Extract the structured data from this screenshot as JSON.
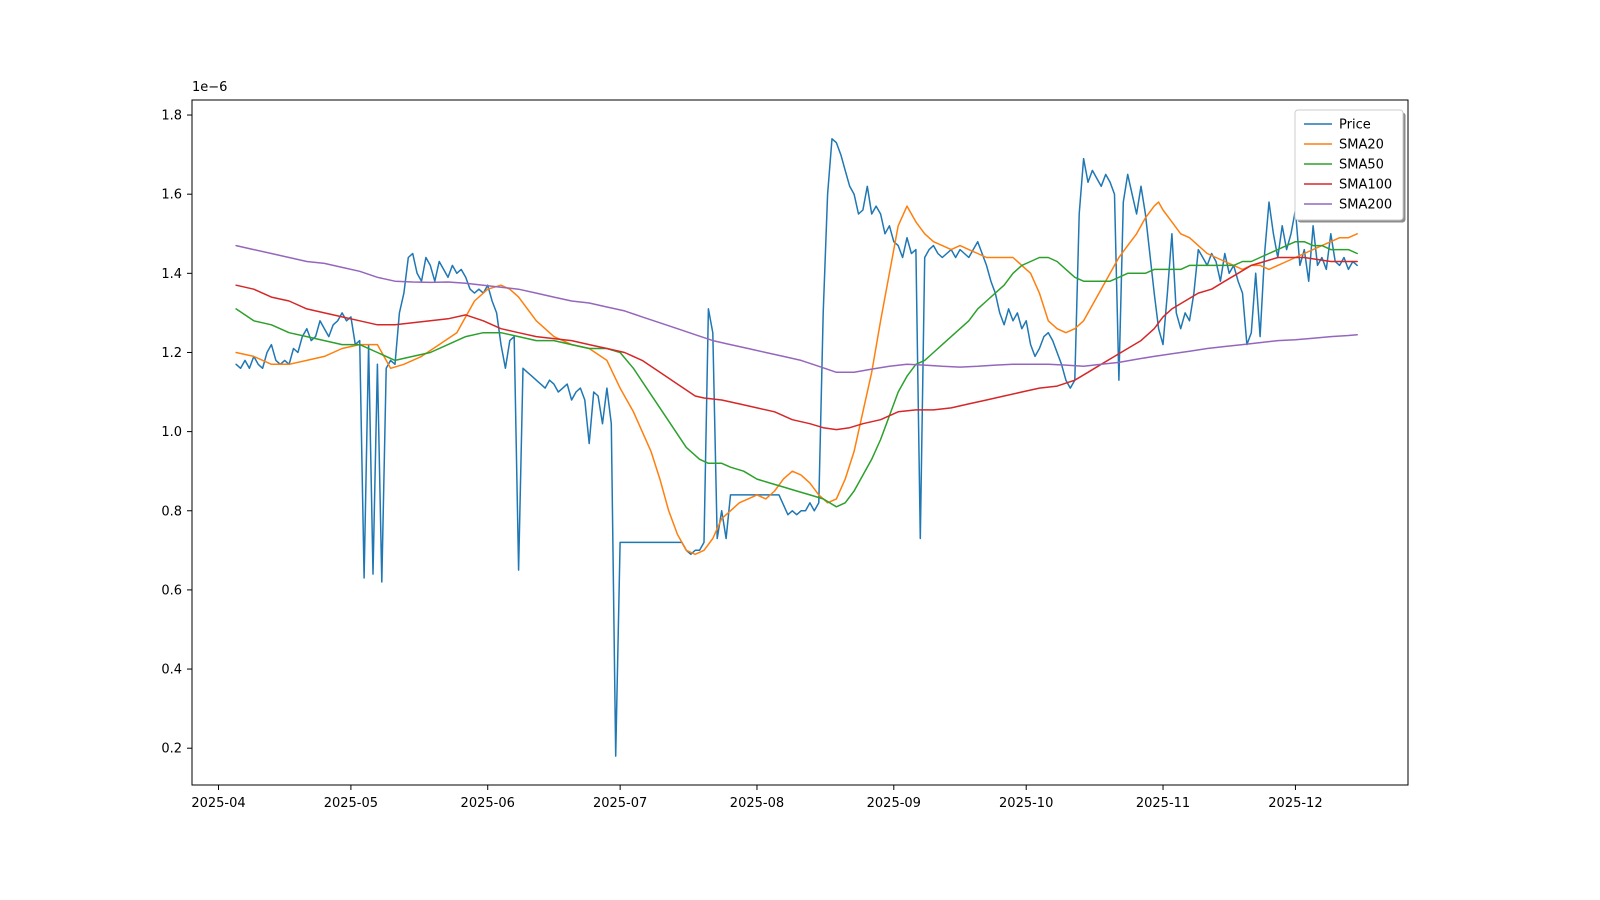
{
  "figure": {
    "background": "#ffffff"
  },
  "chart_data": {
    "type": "line",
    "title": "",
    "xlabel": "",
    "ylabel": "",
    "y_offset_label": "1e−6",
    "grid": false,
    "legend_position": "upper right",
    "xlim": [
      -6,
      269.5
    ],
    "ylim": [
      0.107,
      1.838
    ],
    "x_ticks": [
      {
        "label": "2025-04",
        "value": 0
      },
      {
        "label": "2025-05",
        "value": 30
      },
      {
        "label": "2025-06",
        "value": 61
      },
      {
        "label": "2025-07",
        "value": 91
      },
      {
        "label": "2025-08",
        "value": 122
      },
      {
        "label": "2025-09",
        "value": 153
      },
      {
        "label": "2025-10",
        "value": 183
      },
      {
        "label": "2025-11",
        "value": 214
      },
      {
        "label": "2025-12",
        "value": 244
      }
    ],
    "y_ticks": [
      {
        "label": "0.2",
        "value": 0.2
      },
      {
        "label": "0.4",
        "value": 0.4
      },
      {
        "label": "0.6",
        "value": 0.6
      },
      {
        "label": "0.8",
        "value": 0.8
      },
      {
        "label": "1.0",
        "value": 1.0
      },
      {
        "label": "1.2",
        "value": 1.2
      },
      {
        "label": "1.4",
        "value": 1.4
      },
      {
        "label": "1.6",
        "value": 1.6
      },
      {
        "label": "1.8",
        "value": 1.8
      }
    ],
    "series": [
      {
        "name": "Price",
        "color": "#1f77b4",
        "x": [
          4,
          5,
          6,
          7,
          8,
          9,
          10,
          11,
          12,
          13,
          14,
          15,
          16,
          17,
          18,
          19,
          20,
          21,
          22,
          23,
          24,
          25,
          26,
          27,
          28,
          29,
          30,
          31,
          32,
          33,
          34,
          35,
          36,
          37,
          38,
          39,
          40,
          41,
          42,
          43,
          44,
          45,
          46,
          47,
          48,
          49,
          50,
          51,
          52,
          53,
          54,
          55,
          56,
          57,
          58,
          59,
          60,
          61,
          62,
          63,
          64,
          65,
          66,
          67,
          68,
          69,
          70,
          71,
          72,
          73,
          74,
          75,
          76,
          77,
          78,
          79,
          80,
          81,
          82,
          83,
          84,
          85,
          86,
          87,
          88,
          89,
          90,
          91,
          94,
          97,
          100,
          103,
          105,
          106,
          107,
          108,
          109,
          110,
          111,
          112,
          113,
          114,
          115,
          116,
          118,
          121,
          124,
          127,
          129,
          130,
          131,
          132,
          133,
          134,
          135,
          136,
          137,
          138,
          139,
          140,
          141,
          142,
          143,
          144,
          145,
          146,
          147,
          148,
          149,
          150,
          151,
          152,
          153,
          154,
          155,
          156,
          157,
          158,
          159,
          160,
          161,
          162,
          163,
          164,
          165,
          166,
          167,
          168,
          169,
          170,
          171,
          172,
          173,
          174,
          175,
          176,
          177,
          178,
          179,
          180,
          181,
          182,
          183,
          184,
          185,
          186,
          187,
          188,
          189,
          190,
          191,
          192,
          193,
          194,
          195,
          196,
          197,
          198,
          199,
          200,
          201,
          202,
          203,
          204,
          205,
          206,
          207,
          208,
          209,
          210,
          211,
          212,
          213,
          214,
          215,
          216,
          217,
          218,
          219,
          220,
          221,
          222,
          223,
          224,
          225,
          226,
          227,
          228,
          229,
          230,
          231,
          232,
          233,
          234,
          235,
          236,
          237,
          238,
          239,
          240,
          241,
          242,
          243,
          244,
          245,
          246,
          247,
          248,
          249,
          250,
          251,
          252,
          253,
          254,
          255,
          256,
          257,
          258
        ],
        "y": [
          1.17,
          1.16,
          1.18,
          1.16,
          1.19,
          1.17,
          1.16,
          1.2,
          1.22,
          1.18,
          1.17,
          1.18,
          1.17,
          1.21,
          1.2,
          1.24,
          1.26,
          1.23,
          1.24,
          1.28,
          1.26,
          1.24,
          1.27,
          1.28,
          1.3,
          1.28,
          1.29,
          1.22,
          1.23,
          0.63,
          1.22,
          0.64,
          1.17,
          0.62,
          1.16,
          1.18,
          1.17,
          1.3,
          1.35,
          1.44,
          1.45,
          1.4,
          1.38,
          1.44,
          1.42,
          1.38,
          1.43,
          1.41,
          1.39,
          1.42,
          1.4,
          1.41,
          1.39,
          1.36,
          1.35,
          1.36,
          1.35,
          1.37,
          1.33,
          1.3,
          1.22,
          1.16,
          1.23,
          1.24,
          0.65,
          1.16,
          1.15,
          1.14,
          1.13,
          1.12,
          1.11,
          1.13,
          1.12,
          1.1,
          1.11,
          1.12,
          1.08,
          1.1,
          1.11,
          1.08,
          0.97,
          1.1,
          1.09,
          1.02,
          1.11,
          1.02,
          0.18,
          0.72,
          0.72,
          0.72,
          0.72,
          0.72,
          0.72,
          0.7,
          0.69,
          0.7,
          0.7,
          0.72,
          1.31,
          1.25,
          0.73,
          0.8,
          0.73,
          0.84,
          0.84,
          0.84,
          0.84,
          0.84,
          0.79,
          0.8,
          0.79,
          0.8,
          0.8,
          0.82,
          0.8,
          0.82,
          1.3,
          1.6,
          1.74,
          1.73,
          1.7,
          1.66,
          1.62,
          1.6,
          1.55,
          1.56,
          1.62,
          1.55,
          1.57,
          1.55,
          1.5,
          1.52,
          1.48,
          1.47,
          1.44,
          1.49,
          1.45,
          1.46,
          0.73,
          1.44,
          1.46,
          1.47,
          1.45,
          1.44,
          1.45,
          1.46,
          1.44,
          1.46,
          1.45,
          1.44,
          1.46,
          1.48,
          1.45,
          1.42,
          1.38,
          1.35,
          1.3,
          1.27,
          1.31,
          1.28,
          1.3,
          1.26,
          1.28,
          1.22,
          1.19,
          1.21,
          1.24,
          1.25,
          1.23,
          1.2,
          1.17,
          1.13,
          1.11,
          1.13,
          1.55,
          1.69,
          1.63,
          1.66,
          1.64,
          1.62,
          1.65,
          1.63,
          1.6,
          1.13,
          1.58,
          1.65,
          1.6,
          1.55,
          1.62,
          1.55,
          1.45,
          1.35,
          1.26,
          1.22,
          1.35,
          1.5,
          1.3,
          1.26,
          1.3,
          1.28,
          1.35,
          1.46,
          1.44,
          1.42,
          1.45,
          1.43,
          1.38,
          1.45,
          1.4,
          1.42,
          1.38,
          1.35,
          1.22,
          1.25,
          1.4,
          1.24,
          1.45,
          1.58,
          1.5,
          1.44,
          1.52,
          1.46,
          1.5,
          1.56,
          1.42,
          1.46,
          1.38,
          1.52,
          1.42,
          1.44,
          1.41,
          1.5,
          1.43,
          1.42,
          1.44,
          1.41,
          1.43,
          1.42
        ]
      },
      {
        "name": "SMA20",
        "color": "#ff7f0e",
        "x": [
          4,
          8,
          12,
          16,
          20,
          24,
          28,
          32,
          36,
          39,
          42,
          46,
          50,
          54,
          58,
          61,
          64,
          66,
          68,
          72,
          76,
          80,
          84,
          88,
          91,
          94,
          96,
          98,
          100,
          102,
          104,
          106,
          108,
          110,
          112,
          114,
          116,
          118,
          120,
          122,
          124,
          126,
          128,
          130,
          132,
          134,
          136,
          138,
          140,
          142,
          144,
          146,
          148,
          150,
          152,
          154,
          156,
          158,
          160,
          162,
          164,
          166,
          168,
          170,
          172,
          174,
          176,
          178,
          180,
          182,
          184,
          186,
          188,
          190,
          192,
          194,
          196,
          198,
          200,
          202,
          204,
          206,
          208,
          210,
          212,
          213,
          214,
          216,
          218,
          220,
          222,
          224,
          226,
          228,
          230,
          232,
          234,
          236,
          238,
          240,
          242,
          244,
          246,
          248,
          250,
          252,
          254,
          256,
          258
        ],
        "y": [
          1.2,
          1.19,
          1.17,
          1.17,
          1.18,
          1.19,
          1.21,
          1.22,
          1.22,
          1.16,
          1.17,
          1.19,
          1.22,
          1.25,
          1.33,
          1.36,
          1.37,
          1.36,
          1.34,
          1.28,
          1.24,
          1.22,
          1.21,
          1.18,
          1.11,
          1.05,
          1.0,
          0.95,
          0.88,
          0.8,
          0.74,
          0.7,
          0.69,
          0.7,
          0.73,
          0.78,
          0.8,
          0.82,
          0.83,
          0.84,
          0.83,
          0.85,
          0.88,
          0.9,
          0.89,
          0.87,
          0.84,
          0.82,
          0.83,
          0.88,
          0.95,
          1.05,
          1.15,
          1.28,
          1.4,
          1.52,
          1.57,
          1.53,
          1.5,
          1.48,
          1.47,
          1.46,
          1.47,
          1.46,
          1.45,
          1.44,
          1.44,
          1.44,
          1.44,
          1.42,
          1.4,
          1.35,
          1.28,
          1.26,
          1.25,
          1.26,
          1.28,
          1.32,
          1.36,
          1.4,
          1.44,
          1.47,
          1.5,
          1.54,
          1.57,
          1.58,
          1.56,
          1.53,
          1.5,
          1.49,
          1.47,
          1.45,
          1.44,
          1.43,
          1.42,
          1.41,
          1.42,
          1.42,
          1.41,
          1.42,
          1.43,
          1.44,
          1.45,
          1.46,
          1.47,
          1.48,
          1.49,
          1.49,
          1.5
        ]
      },
      {
        "name": "SMA50",
        "color": "#2ca02c",
        "x": [
          4,
          8,
          12,
          16,
          20,
          24,
          28,
          32,
          36,
          40,
          44,
          48,
          52,
          56,
          60,
          64,
          68,
          72,
          76,
          80,
          84,
          88,
          91,
          94,
          97,
          100,
          103,
          106,
          109,
          111,
          114,
          116,
          119,
          122,
          125,
          128,
          131,
          134,
          137,
          140,
          142,
          144,
          146,
          148,
          150,
          152,
          154,
          156,
          158,
          160,
          162,
          164,
          166,
          168,
          170,
          172,
          174,
          176,
          178,
          180,
          182,
          184,
          186,
          188,
          190,
          192,
          194,
          196,
          198,
          200,
          202,
          204,
          206,
          208,
          210,
          212,
          214,
          216,
          218,
          220,
          222,
          224,
          226,
          228,
          230,
          232,
          234,
          236,
          238,
          240,
          242,
          244,
          246,
          248,
          250,
          252,
          254,
          256,
          258
        ],
        "y": [
          1.31,
          1.28,
          1.27,
          1.25,
          1.24,
          1.23,
          1.22,
          1.22,
          1.2,
          1.18,
          1.19,
          1.2,
          1.22,
          1.24,
          1.25,
          1.25,
          1.24,
          1.23,
          1.23,
          1.22,
          1.21,
          1.21,
          1.2,
          1.16,
          1.11,
          1.06,
          1.01,
          0.96,
          0.93,
          0.92,
          0.92,
          0.91,
          0.9,
          0.88,
          0.87,
          0.86,
          0.85,
          0.84,
          0.83,
          0.81,
          0.82,
          0.85,
          0.89,
          0.93,
          0.98,
          1.04,
          1.1,
          1.14,
          1.17,
          1.18,
          1.2,
          1.22,
          1.24,
          1.26,
          1.28,
          1.31,
          1.33,
          1.35,
          1.37,
          1.4,
          1.42,
          1.43,
          1.44,
          1.44,
          1.43,
          1.41,
          1.39,
          1.38,
          1.38,
          1.38,
          1.38,
          1.39,
          1.4,
          1.4,
          1.4,
          1.41,
          1.41,
          1.41,
          1.41,
          1.42,
          1.42,
          1.42,
          1.42,
          1.42,
          1.42,
          1.43,
          1.43,
          1.44,
          1.45,
          1.46,
          1.47,
          1.48,
          1.48,
          1.47,
          1.47,
          1.46,
          1.46,
          1.46,
          1.45
        ]
      },
      {
        "name": "SMA100",
        "color": "#d62728",
        "x": [
          4,
          8,
          12,
          16,
          20,
          24,
          28,
          32,
          36,
          40,
          44,
          48,
          52,
          56,
          60,
          64,
          68,
          72,
          76,
          80,
          84,
          88,
          92,
          96,
          100,
          104,
          108,
          110,
          114,
          118,
          122,
          126,
          130,
          134,
          137,
          140,
          143,
          146,
          150,
          154,
          158,
          162,
          166,
          170,
          174,
          178,
          182,
          186,
          190,
          194,
          197,
          200,
          203,
          206,
          209,
          212,
          214,
          216,
          219,
          222,
          225,
          228,
          231,
          234,
          237,
          240,
          243,
          246,
          249,
          252,
          255,
          258
        ],
        "y": [
          1.37,
          1.36,
          1.34,
          1.33,
          1.31,
          1.3,
          1.29,
          1.28,
          1.27,
          1.27,
          1.275,
          1.28,
          1.285,
          1.295,
          1.28,
          1.26,
          1.25,
          1.24,
          1.235,
          1.23,
          1.22,
          1.21,
          1.2,
          1.18,
          1.15,
          1.12,
          1.09,
          1.085,
          1.08,
          1.07,
          1.06,
          1.05,
          1.03,
          1.02,
          1.01,
          1.005,
          1.01,
          1.02,
          1.03,
          1.05,
          1.055,
          1.055,
          1.06,
          1.07,
          1.08,
          1.09,
          1.1,
          1.11,
          1.115,
          1.13,
          1.15,
          1.17,
          1.19,
          1.21,
          1.23,
          1.26,
          1.29,
          1.31,
          1.33,
          1.35,
          1.36,
          1.38,
          1.4,
          1.42,
          1.43,
          1.44,
          1.44,
          1.44,
          1.435,
          1.43,
          1.43,
          1.43
        ]
      },
      {
        "name": "SMA200",
        "color": "#9467bd",
        "x": [
          4,
          8,
          12,
          16,
          20,
          24,
          28,
          32,
          36,
          40,
          44,
          48,
          52,
          56,
          60,
          64,
          68,
          72,
          76,
          80,
          84,
          88,
          92,
          96,
          100,
          104,
          108,
          112,
          116,
          120,
          124,
          128,
          132,
          136,
          140,
          144,
          148,
          152,
          156,
          160,
          164,
          168,
          172,
          176,
          180,
          184,
          188,
          192,
          196,
          200,
          204,
          208,
          212,
          216,
          220,
          224,
          228,
          232,
          236,
          240,
          244,
          248,
          252,
          256,
          258
        ],
        "y": [
          1.47,
          1.46,
          1.45,
          1.44,
          1.43,
          1.425,
          1.415,
          1.405,
          1.39,
          1.38,
          1.378,
          1.377,
          1.378,
          1.375,
          1.37,
          1.365,
          1.36,
          1.35,
          1.34,
          1.33,
          1.325,
          1.315,
          1.305,
          1.29,
          1.275,
          1.26,
          1.245,
          1.23,
          1.22,
          1.21,
          1.2,
          1.19,
          1.18,
          1.165,
          1.15,
          1.15,
          1.158,
          1.165,
          1.17,
          1.168,
          1.165,
          1.163,
          1.165,
          1.168,
          1.17,
          1.17,
          1.17,
          1.168,
          1.165,
          1.17,
          1.175,
          1.183,
          1.19,
          1.197,
          1.203,
          1.21,
          1.215,
          1.22,
          1.225,
          1.23,
          1.232,
          1.236,
          1.24,
          1.243,
          1.245
        ]
      }
    ]
  }
}
